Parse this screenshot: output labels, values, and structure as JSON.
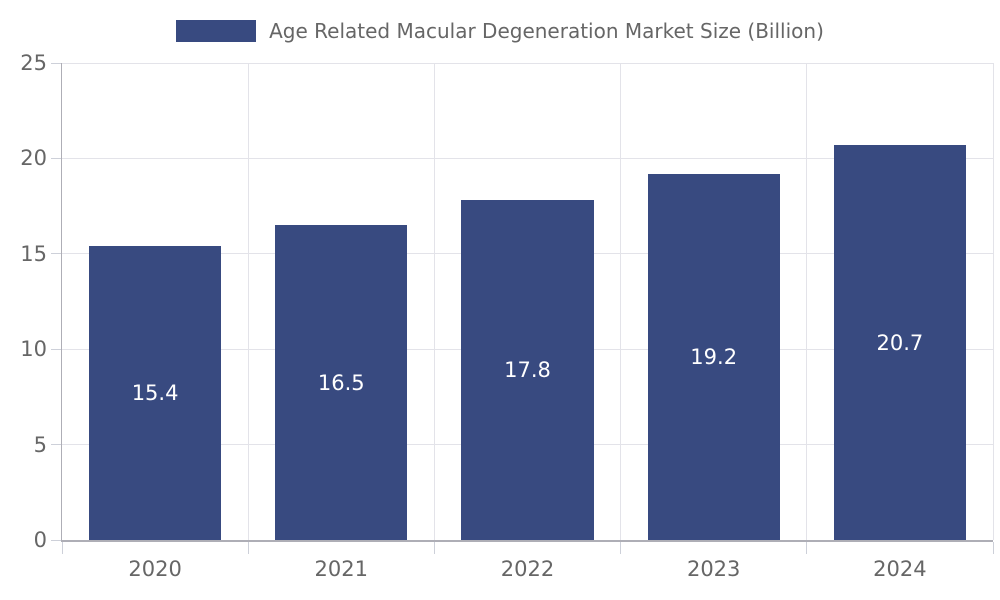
{
  "legend": {
    "swatch_color": "#384a80"
  },
  "colors": {
    "bar": "#384a80",
    "axis_line": "#aeaeb6",
    "gridline": "#e3e3e9",
    "tick": "#cdd0d9",
    "tick_label": "#666666",
    "value_label": "#ffffff",
    "legend_text": "#666666"
  },
  "chart_data": {
    "type": "bar",
    "title": "Age Related Macular Degeneration Market Size (Billion)",
    "categories": [
      "2020",
      "2021",
      "2022",
      "2023",
      "2024"
    ],
    "values": [
      15.4,
      16.5,
      17.8,
      19.2,
      20.7
    ],
    "xlabel": "",
    "ylabel": "",
    "ylim": [
      0,
      25
    ],
    "yticks": [
      0,
      5,
      10,
      15,
      20,
      25
    ],
    "grid": true,
    "gridline_placement": "category-boundaries",
    "legend_position": "top-center",
    "bar_labels": "inside-center",
    "bar_width_fraction": 0.71
  }
}
